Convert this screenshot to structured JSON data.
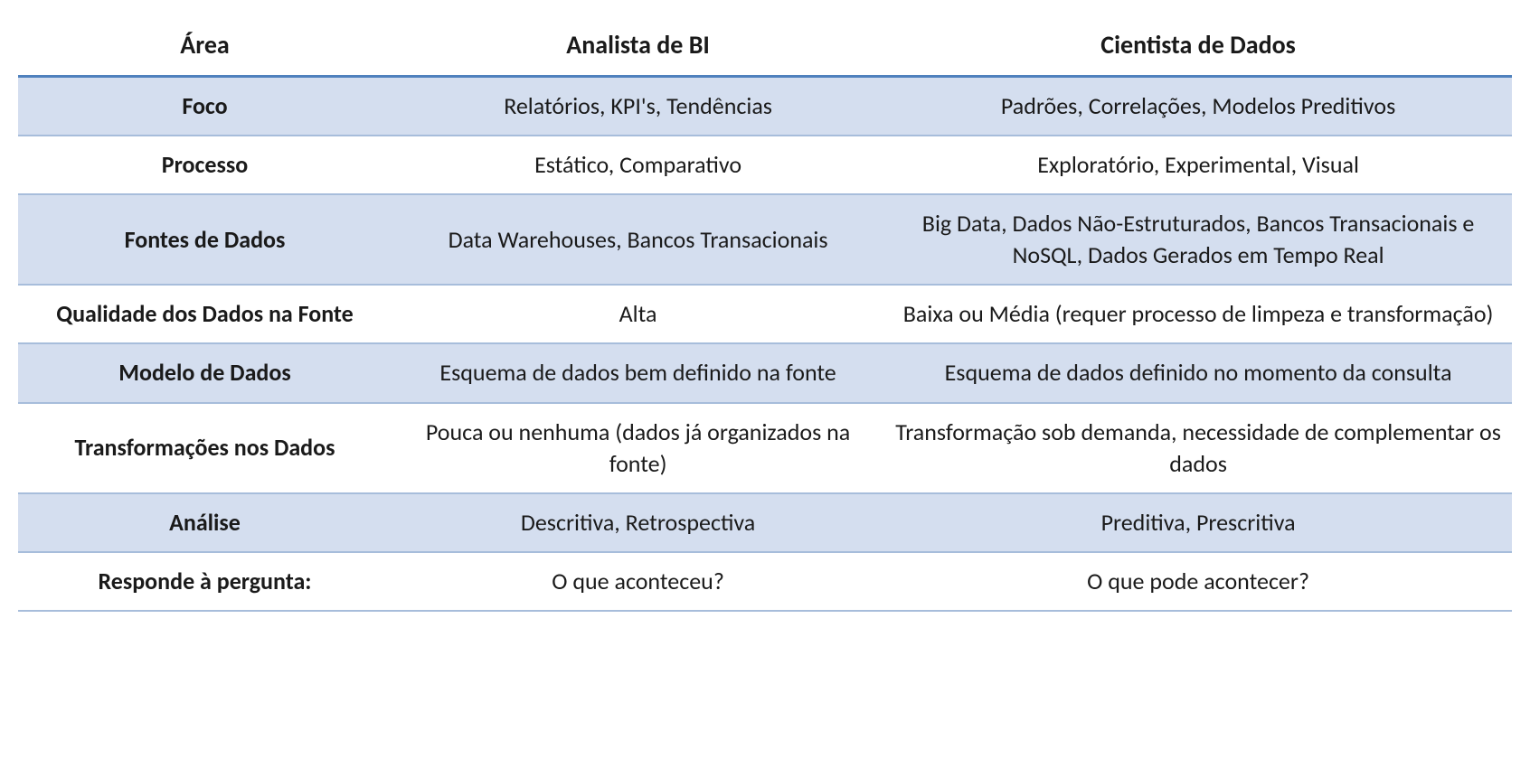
{
  "table": {
    "type": "table",
    "background_color": "#ffffff",
    "stripe_color_odd": "#d4deef",
    "stripe_color_even": "#ffffff",
    "header_border_color": "#4f81bd",
    "row_border_color": "#a7bddb",
    "text_color": "#1a1a1a",
    "header_fontsize": 28,
    "cell_fontsize": 26,
    "font_family": "Calibri",
    "column_widths_pct": [
      25,
      33,
      42
    ],
    "columns": [
      "Área",
      "Analista de BI",
      "Cientista de Dados"
    ],
    "rows": [
      {
        "area": "Foco",
        "bi": "Relatórios, KPI's, Tendências",
        "ds": "Padrões, Correlações, Modelos Preditivos"
      },
      {
        "area": "Processo",
        "bi": "Estático, Comparativo",
        "ds": "Exploratório, Experimental, Visual"
      },
      {
        "area": "Fontes de Dados",
        "bi": "Data Warehouses, Bancos Transacionais",
        "ds": "Big Data, Dados Não-Estruturados, Bancos Transacionais e NoSQL, Dados Gerados em Tempo Real"
      },
      {
        "area": "Qualidade dos Dados na Fonte",
        "bi": "Alta",
        "ds": "Baixa ou Média (requer processo de limpeza e transformação)"
      },
      {
        "area": "Modelo de Dados",
        "bi": "Esquema de dados bem definido na fonte",
        "ds": "Esquema de dados definido no momento da consulta"
      },
      {
        "area": "Transformações nos Dados",
        "bi": "Pouca ou nenhuma (dados já organizados na fonte)",
        "ds": "Transformação sob demanda, necessidade de complementar os dados"
      },
      {
        "area": "Análise",
        "bi": "Descritiva, Retrospectiva",
        "ds": "Preditiva, Prescritiva"
      },
      {
        "area": "Responde à pergunta:",
        "bi": "O que aconteceu?",
        "ds": "O que pode acontecer?"
      }
    ]
  }
}
